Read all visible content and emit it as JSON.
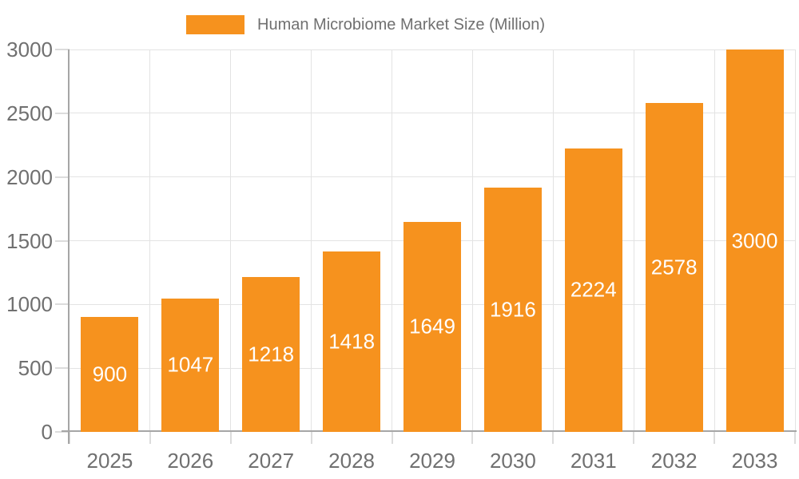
{
  "legend": {
    "label": "Human Microbiome Market Size (Million)"
  },
  "chart_data": {
    "type": "bar",
    "title": "Human Microbiome Market Size (Million)",
    "series_name": "Human Microbiome Market Size (Million)",
    "categories": [
      "2025",
      "2026",
      "2027",
      "2028",
      "2029",
      "2030",
      "2031",
      "2032",
      "2033"
    ],
    "values": [
      900,
      1047,
      1218,
      1418,
      1649,
      1916,
      2224,
      2578,
      3000
    ],
    "bar_value_labels": [
      "900",
      "1047",
      "1218",
      "1418",
      "1649",
      "1916",
      "2224",
      "2578",
      "3000"
    ],
    "xlabel": "",
    "ylabel": "",
    "ylim": [
      0,
      3000
    ],
    "y_ticks": [
      0,
      500,
      1000,
      1500,
      2000,
      2500,
      3000
    ],
    "grid": true,
    "legend_position": "top",
    "colors": {
      "bar": "#F6921E",
      "bar_label_text": "#FFFFFF",
      "axis_text": "#707070",
      "axis_line": "#A6A6A6",
      "gridline": "#E3E3E3",
      "tick": "#DCDCDC",
      "background": "#FFFFFF"
    }
  }
}
